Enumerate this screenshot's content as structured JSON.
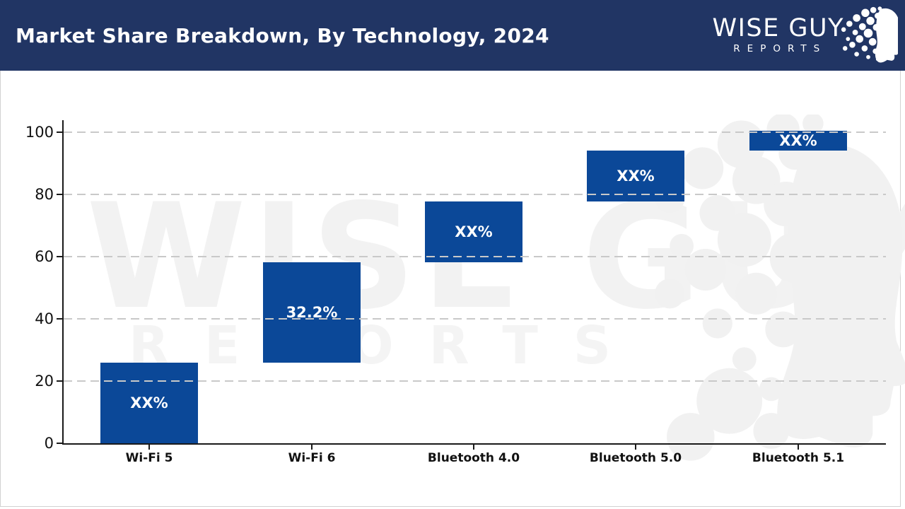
{
  "header": {
    "title": "Market Share Breakdown, By Technology, 2024",
    "logo": {
      "line1": "WISE GUY",
      "line2": "REPORTS"
    }
  },
  "watermark": {
    "line1": "WISE GUY",
    "line2": "REPORTS"
  },
  "colors": {
    "header_bg": "#213564",
    "bar": "#0b4898",
    "grid": "#c9c9c9",
    "axis": "#1a1a1a",
    "card_border": "#d2d2d2",
    "watermark": "#f2f2f2"
  },
  "chart_data": {
    "type": "bar",
    "subtype": "waterfall",
    "title": "Market Share Breakdown, By Technology, 2024",
    "xlabel": "",
    "ylabel": "",
    "ylim": [
      0,
      104
    ],
    "yticks": [
      0,
      20,
      40,
      60,
      80,
      100
    ],
    "grid": "horizontal-dashed-drawn-above-bars",
    "legend": "none",
    "categories": [
      "Wi-Fi 5",
      "Wi-Fi 6",
      "Bluetooth 4.0",
      "Bluetooth 5.0",
      "Bluetooth 5.1"
    ],
    "segments": [
      {
        "category": "Wi-Fi 5",
        "start": 0,
        "end": 25.9,
        "value_label": "XX%"
      },
      {
        "category": "Wi-Fi 6",
        "start": 25.9,
        "end": 58.1,
        "value_label": "32.2%"
      },
      {
        "category": "Bluetooth 4.0",
        "start": 58.1,
        "end": 77.7,
        "value_label": "XX%"
      },
      {
        "category": "Bluetooth 5.0",
        "start": 77.7,
        "end": 94.1,
        "value_label": "XX%"
      },
      {
        "category": "Bluetooth 5.1",
        "start": 94.1,
        "end": 100.5,
        "value_label": "XX%"
      }
    ],
    "bar_color": "#0b4898",
    "value_label_color": "#ffffff"
  }
}
